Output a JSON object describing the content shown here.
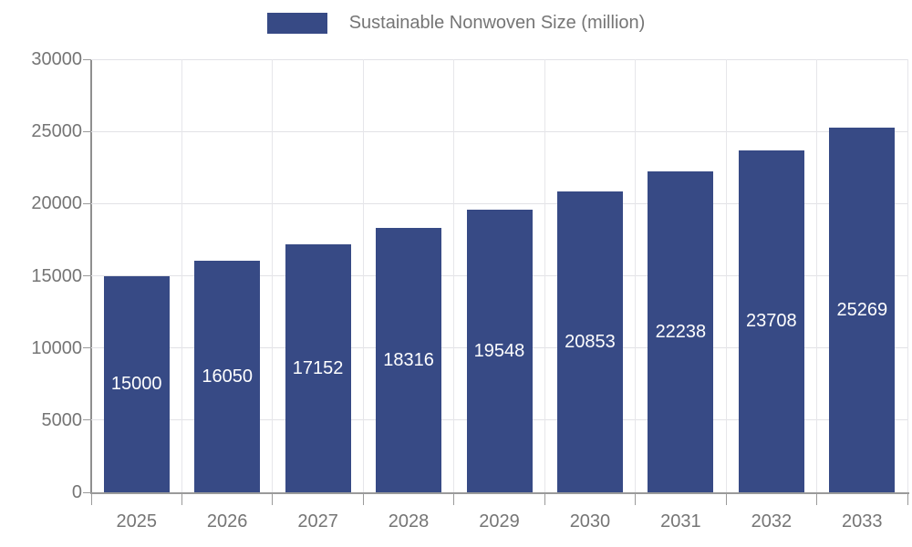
{
  "legend": {
    "label": "Sustainable Nonwoven Size (million)"
  },
  "colors": {
    "bar": "#374a85",
    "axis_line": "#9a9a9a",
    "grid_line": "#e2e2e6",
    "tick_text": "#757575",
    "value_label": "#ffffff",
    "background": "#ffffff"
  },
  "chart_data": {
    "type": "bar",
    "title": "",
    "xlabel": "",
    "ylabel": "",
    "categories": [
      "2025",
      "2026",
      "2027",
      "2028",
      "2029",
      "2030",
      "2031",
      "2032",
      "2033"
    ],
    "values": [
      15000,
      16050,
      17152,
      18316,
      19548,
      20853,
      22238,
      23708,
      25269
    ],
    "series": [
      {
        "name": "Sustainable Nonwoven Size (million)",
        "values": [
          15000,
          16050,
          17152,
          18316,
          19548,
          20853,
          22238,
          23708,
          25269
        ]
      }
    ],
    "ylim": [
      0,
      30000
    ],
    "yticks": [
      0,
      5000,
      10000,
      15000,
      20000,
      25000,
      30000
    ],
    "grid": true,
    "legend_position": "top-center",
    "value_labels": "inside-center"
  }
}
